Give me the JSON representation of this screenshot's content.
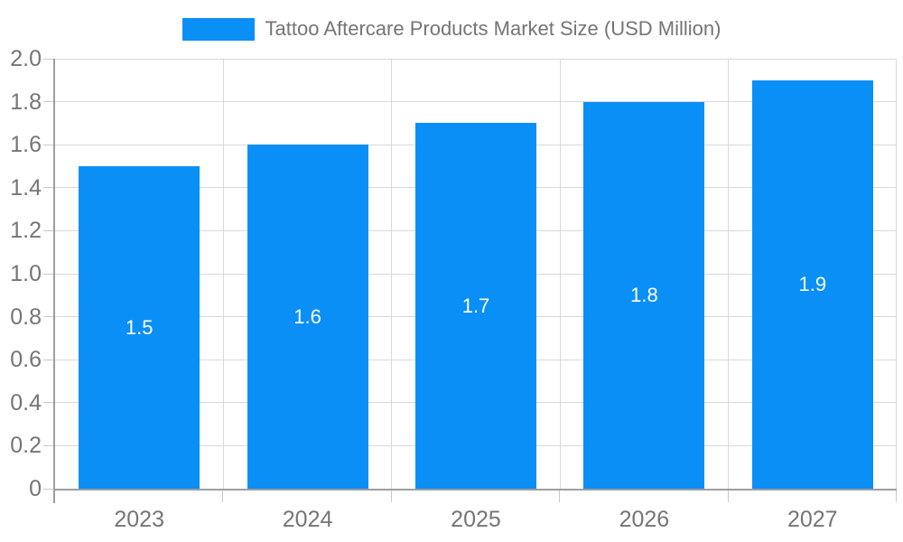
{
  "chart_data": {
    "type": "bar",
    "title": "Tattoo Aftercare Products Market Size (USD Million)",
    "categories": [
      "2023",
      "2024",
      "2025",
      "2026",
      "2027"
    ],
    "values": [
      1.5,
      1.6,
      1.7,
      1.8,
      1.9
    ],
    "value_labels": [
      "1.5",
      "1.6",
      "1.7",
      "1.8",
      "1.9"
    ],
    "xlabel": "",
    "ylabel": "",
    "ylim": [
      0,
      2.0
    ],
    "ytick_interval": 0.2,
    "ytick_labels": [
      "0",
      "0.2",
      "0.4",
      "0.6",
      "0.8",
      "1.0",
      "1.2",
      "1.4",
      "1.6",
      "1.8",
      "2.0"
    ],
    "grid": true,
    "legend_position": "top-center",
    "colors": {
      "bar": "#0a8ff7",
      "gridline": "#d9d9d9",
      "axis": "#9e9e9e",
      "tick": "#c9c9c9",
      "axis_label": "#757575",
      "legend_text": "#757575",
      "value_label": "#ffffff",
      "background": "#ffffff"
    }
  }
}
